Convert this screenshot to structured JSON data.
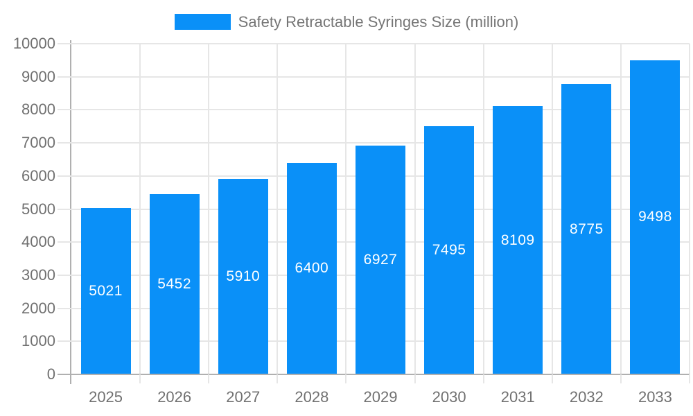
{
  "chart_data": {
    "type": "bar",
    "title": "",
    "legend": "Safety Retractable Syringes Size (million)",
    "legend_position": "top-center",
    "categories": [
      "2025",
      "2026",
      "2027",
      "2028",
      "2029",
      "2030",
      "2031",
      "2032",
      "2033"
    ],
    "values": [
      5021,
      5452,
      5910,
      6400,
      6927,
      7495,
      8109,
      8775,
      9498
    ],
    "xlabel": "",
    "ylabel": "",
    "ylim": [
      0,
      10000
    ],
    "ytick_step": 1000,
    "yticks": [
      0,
      1000,
      2000,
      3000,
      4000,
      5000,
      6000,
      7000,
      8000,
      9000,
      10000
    ],
    "grid": true,
    "bar_value_labels_visible": true
  },
  "colors": {
    "bar": "#0a90f8",
    "bar_label": "#ffffff",
    "axis_line": "#b0b0b0",
    "grid_line": "#e6e6e6",
    "tick_label": "#707070",
    "legend_text": "#757575",
    "background": "#ffffff"
  }
}
